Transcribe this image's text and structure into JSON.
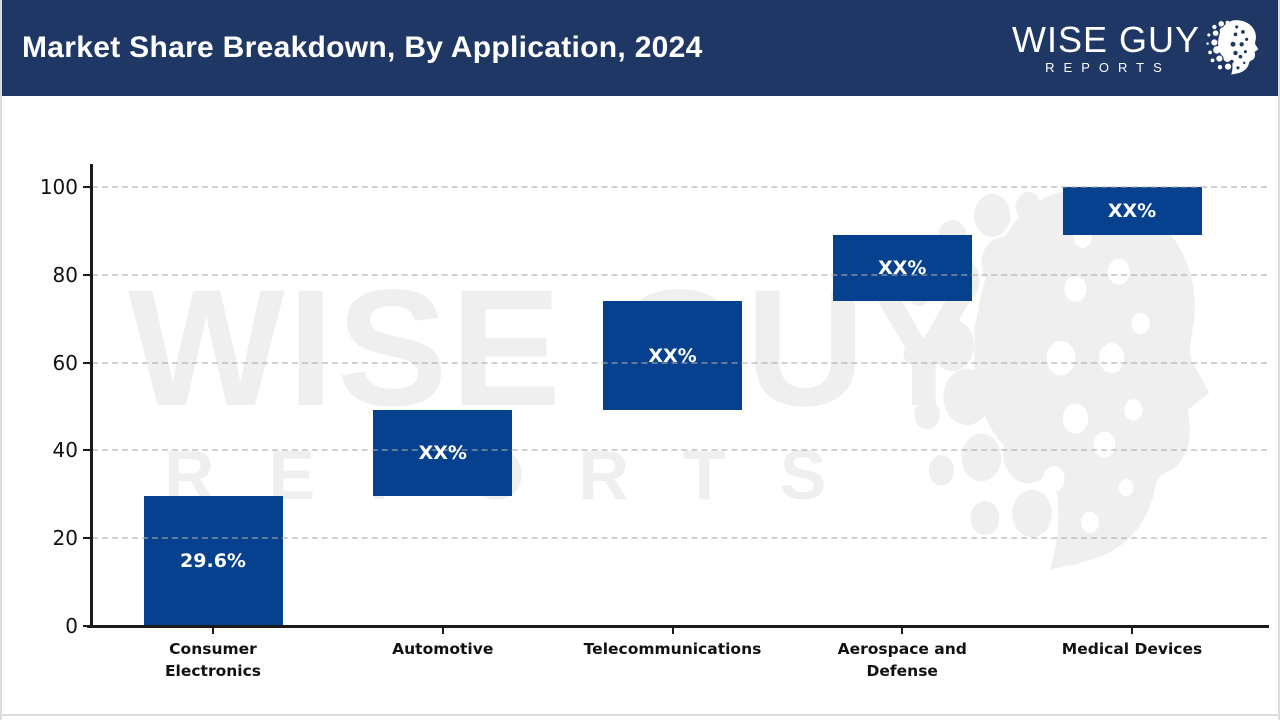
{
  "header": {
    "title": "Market Share Breakdown, By Application, 2024",
    "bg_color": "#1F3765",
    "brand": {
      "name_line1": "WISE GUY",
      "name_line2": "REPORTS"
    }
  },
  "watermark": {
    "line1": "WISE GUY",
    "line2": "REPORTS"
  },
  "chart_data": {
    "type": "bar",
    "subtype": "waterfall-floating-bars",
    "title": "Market Share Breakdown, By Application, 2024",
    "categories": [
      "Consumer Electronics",
      "Automotive",
      "Telecommunications",
      "Aerospace and Defense",
      "Medical Devices"
    ],
    "category_lines": [
      [
        "Consumer",
        "Electronics"
      ],
      [
        "Automotive"
      ],
      [
        "Telecommunications"
      ],
      [
        "Aerospace and",
        "Defense"
      ],
      [
        "Medical Devices"
      ]
    ],
    "segments": [
      {
        "category": "Consumer Electronics",
        "start": 0,
        "end": 29.6,
        "label": "29.6%"
      },
      {
        "category": "Automotive",
        "start": 29.6,
        "end": 49.2,
        "label": "XX%"
      },
      {
        "category": "Telecommunications",
        "start": 49.2,
        "end": 74.0,
        "label": "XX%"
      },
      {
        "category": "Aerospace and Defense",
        "start": 74.0,
        "end": 89.0,
        "label": "XX%"
      },
      {
        "category": "Medical Devices",
        "start": 89.0,
        "end": 100.0,
        "label": "XX%"
      }
    ],
    "xlabel": "",
    "ylabel": "",
    "ylim": [
      0,
      100
    ],
    "yticks": [
      0,
      20,
      40,
      60,
      80,
      100
    ],
    "grid": {
      "horizontal": true,
      "style": "dashed",
      "color": "#D9D9D9",
      "drawn_over_bars": true
    },
    "legend": "none",
    "bar_color": "#05418F",
    "bar_label_color": "#FFFFFF",
    "axis_color": "#1A1A1A"
  }
}
